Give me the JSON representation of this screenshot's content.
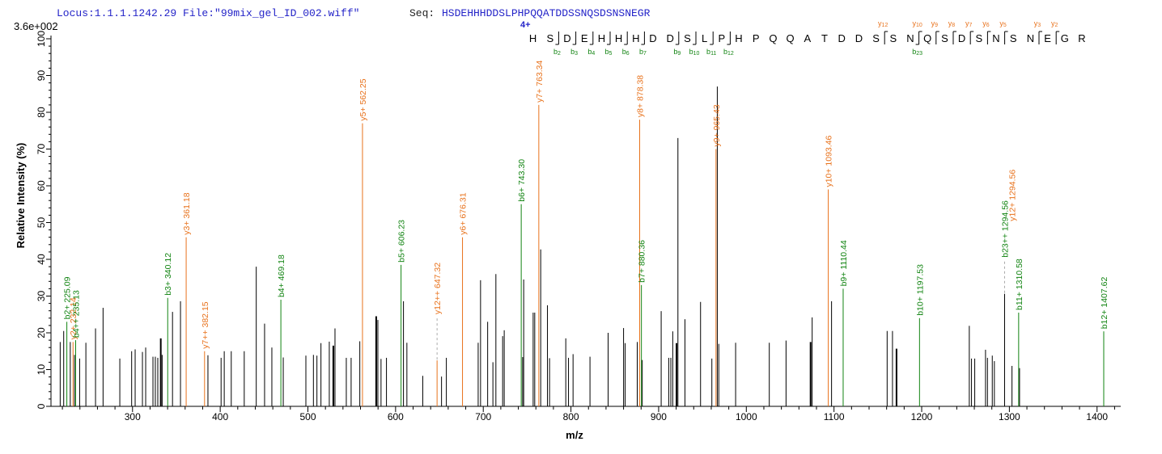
{
  "header": {
    "locus_file": "Locus:1.1.1.1242.29 File:\"99mix_gel_ID_002.wiff\"",
    "seq_label": "Seq:",
    "sequence": "HSDEHHHDDSLPHPQQATDDSSNQSDSNSNEGR",
    "max_intensity": "3.6e+002",
    "precursor_charge": "4+"
  },
  "colors": {
    "y_ion": "#e8721c",
    "b_ion": "#128412",
    "peak": "#000000",
    "header_blue": "#2424c8",
    "pointer_gray": "#aaaaaa"
  },
  "sequence_panel": {
    "cuts": [
      {
        "after": 2,
        "b": "2"
      },
      {
        "after": 3,
        "b": "3"
      },
      {
        "after": 4,
        "b": "4"
      },
      {
        "after": 5,
        "b": "5"
      },
      {
        "after": 6,
        "b": "6"
      },
      {
        "after": 7,
        "b": "7"
      },
      {
        "after": 9,
        "b": "9"
      },
      {
        "after": 10,
        "b": "10"
      },
      {
        "after": 11,
        "b": "11"
      },
      {
        "after": 12,
        "b": "12"
      },
      {
        "after": 21,
        "y": "12"
      },
      {
        "after": 23,
        "b": "23",
        "y": "10"
      },
      {
        "after": 24,
        "y": "9"
      },
      {
        "after": 25,
        "y": "8"
      },
      {
        "after": 26,
        "y": "7"
      },
      {
        "after": 27,
        "y": "6"
      },
      {
        "after": 28,
        "y": "5"
      },
      {
        "after": 30,
        "y": "3"
      },
      {
        "after": 31,
        "y": "2"
      }
    ]
  },
  "chart_data": {
    "type": "bar",
    "subtype": "ms2-fragmentation-spectrum",
    "title": "",
    "xlabel": "m/z",
    "ylabel": "Relative Intensity (%)",
    "xlim": [
      207,
      1427
    ],
    "ylim": [
      0,
      100
    ],
    "x_major_tick_start": 300,
    "x_major_tick_step": 100,
    "x_minor_tick_step": 20,
    "y_major_tick_step": 10,
    "y_minor_tick_step": 2,
    "base_peak_intensity": "3.6e+002",
    "labeled_peaks": [
      {
        "label": "b2+ 225.09",
        "mz": 225.09,
        "pct": 23,
        "ion": "b"
      },
      {
        "label": "y2+ 232.14",
        "mz": 232.14,
        "pct": 17.5,
        "ion": "y"
      },
      {
        "label": "b4++ 235.13",
        "mz": 235.13,
        "pct": 18,
        "ion": "b"
      },
      {
        "label": "b3+ 340.12",
        "mz": 340.12,
        "pct": 29.5,
        "ion": "b"
      },
      {
        "label": "y3+ 361.18",
        "mz": 361.18,
        "pct": 46,
        "ion": "y"
      },
      {
        "label": "y7++ 382.15",
        "mz": 382.15,
        "pct": 15,
        "ion": "y"
      },
      {
        "label": "b4+ 469.18",
        "mz": 469.18,
        "pct": 29,
        "ion": "b"
      },
      {
        "label": "y5+ 562.25",
        "mz": 562.25,
        "pct": 77,
        "ion": "y"
      },
      {
        "label": "b5+ 606.23",
        "mz": 606.23,
        "pct": 38.5,
        "ion": "b"
      },
      {
        "label": "y12++ 647.32",
        "mz": 647.32,
        "pct": 12.5,
        "ion": "y",
        "dashed": true,
        "gap": 55
      },
      {
        "label": "y6+ 676.31",
        "mz": 676.31,
        "pct": 46,
        "ion": "y"
      },
      {
        "label": "b6+ 743.30",
        "mz": 743.3,
        "pct": 55,
        "ion": "b"
      },
      {
        "label": "y7+ 763.34",
        "mz": 763.34,
        "pct": 82,
        "ion": "y"
      },
      {
        "label": "y8+ 878.38",
        "mz": 878.38,
        "pct": 78,
        "ion": "y"
      },
      {
        "label": "b7+ 880.36",
        "mz": 880.36,
        "pct": 33,
        "ion": "b"
      },
      {
        "label": "y9+ 965.43",
        "mz": 965.43,
        "pct": 70,
        "ion": "y"
      },
      {
        "label": "y10+ 1093.46",
        "mz": 1093.46,
        "pct": 59,
        "ion": "y"
      },
      {
        "label": "b9+ 1110.44",
        "mz": 1110.44,
        "pct": 32,
        "ion": "b"
      },
      {
        "label": "b10+ 1197.53",
        "mz": 1197.53,
        "pct": 24,
        "ion": "b"
      },
      {
        "label": "b23++ 1294.56",
        "mz": 1294.56,
        "pct": 30.6,
        "ion": "b",
        "dashed": true,
        "gap": 43,
        "peak_color": "#000000"
      },
      {
        "label": "y12+ 1294.56",
        "mz": 1294.56,
        "pct": 30.6,
        "ion": "y",
        "annotation_only": true,
        "gap": 88,
        "dx": 9
      },
      {
        "label": "b11+ 1310.58",
        "mz": 1310.58,
        "pct": 25.5,
        "ion": "b"
      },
      {
        "label": "b12+ 1407.62",
        "mz": 1407.62,
        "pct": 20.4,
        "ion": "b"
      }
    ],
    "unlabeled_peaks": [
      [
        217.5,
        17.5
      ],
      [
        221.5,
        20.5
      ],
      [
        229,
        17.5
      ],
      [
        233.8,
        14
      ],
      [
        239.7,
        13
      ],
      [
        246.8,
        17.3
      ],
      [
        257.8,
        21.2
      ],
      [
        266.4,
        26.8
      ],
      [
        285.5,
        13
      ],
      [
        299,
        15
      ],
      [
        303,
        15.5
      ],
      [
        311.3,
        14.8
      ],
      [
        315,
        16
      ],
      [
        323.3,
        13.5
      ],
      [
        326,
        13.5
      ],
      [
        328.8,
        13.2
      ],
      [
        332.2,
        18.5,
        2
      ],
      [
        333.8,
        14
      ],
      [
        345.6,
        25.7
      ],
      [
        354.7,
        28.6
      ],
      [
        386,
        13.9
      ],
      [
        401,
        13.2
      ],
      [
        404.6,
        15
      ],
      [
        412.6,
        15
      ],
      [
        427.4,
        15
      ],
      [
        441.1,
        38
      ],
      [
        450.6,
        22.5
      ],
      [
        458.9,
        16
      ],
      [
        471.9,
        13.3
      ],
      [
        497.7,
        13.8
      ],
      [
        506.3,
        14
      ],
      [
        510.3,
        13.8
      ],
      [
        514.9,
        17.2
      ],
      [
        524.4,
        17.6
      ],
      [
        529,
        16.5,
        2
      ],
      [
        530.9,
        21.2
      ],
      [
        543.8,
        13.2
      ],
      [
        549.3,
        13.2
      ],
      [
        559.2,
        17.7
      ],
      [
        577.9,
        24.5,
        2
      ],
      [
        579.8,
        23.5
      ],
      [
        583.4,
        12.9
      ],
      [
        589.6,
        13.2
      ],
      [
        609,
        28.6
      ],
      [
        612.9,
        17.3
      ],
      [
        631,
        8.3
      ],
      [
        652.4,
        8.1
      ],
      [
        657.9,
        13.2
      ],
      [
        694.2,
        17.3
      ],
      [
        696.9,
        34.3
      ],
      [
        705,
        23
      ],
      [
        711,
        12
      ],
      [
        714.4,
        36
      ],
      [
        722.1,
        19.1
      ],
      [
        723.9,
        20.7
      ],
      [
        744.9,
        13.4
      ],
      [
        746.1,
        34.5
      ],
      [
        756.9,
        25.5
      ],
      [
        758.7,
        25.5
      ],
      [
        765.5,
        42.7
      ],
      [
        773.2,
        27.5
      ],
      [
        775.6,
        13.1
      ],
      [
        794.1,
        18.5
      ],
      [
        797.2,
        13.2
      ],
      [
        802.4,
        14.2
      ],
      [
        821.7,
        13.5
      ],
      [
        842.4,
        20
      ],
      [
        860,
        21.3
      ],
      [
        861.8,
        17.2
      ],
      [
        875.6,
        17.5
      ],
      [
        881.3,
        12.6
      ],
      [
        902.9,
        25.9
      ],
      [
        911.5,
        13.2
      ],
      [
        913.9,
        13.2
      ],
      [
        916.1,
        20.4
      ],
      [
        920.4,
        17.2,
        2
      ],
      [
        922,
        73
      ],
      [
        930,
        23.7
      ],
      [
        947.8,
        28.4
      ],
      [
        960.7,
        13
      ],
      [
        966.9,
        87
      ],
      [
        968.6,
        17
      ],
      [
        987.8,
        17.3
      ],
      [
        1026.2,
        17.3
      ],
      [
        1045.3,
        17.9
      ],
      [
        1073.3,
        17.5,
        2
      ],
      [
        1075.1,
        24.2
      ],
      [
        1097.2,
        28.6
      ],
      [
        1160.6,
        20.5
      ],
      [
        1166.7,
        20.5
      ],
      [
        1171.3,
        15.7,
        2
      ],
      [
        1254.3,
        21.9
      ],
      [
        1256.8,
        13
      ],
      [
        1260.5,
        13
      ],
      [
        1272.8,
        15.4
      ],
      [
        1275,
        13.2
      ],
      [
        1280.5,
        13.8
      ],
      [
        1282.9,
        12.3
      ],
      [
        1303,
        11
      ],
      [
        1311.6,
        10.4
      ]
    ]
  }
}
